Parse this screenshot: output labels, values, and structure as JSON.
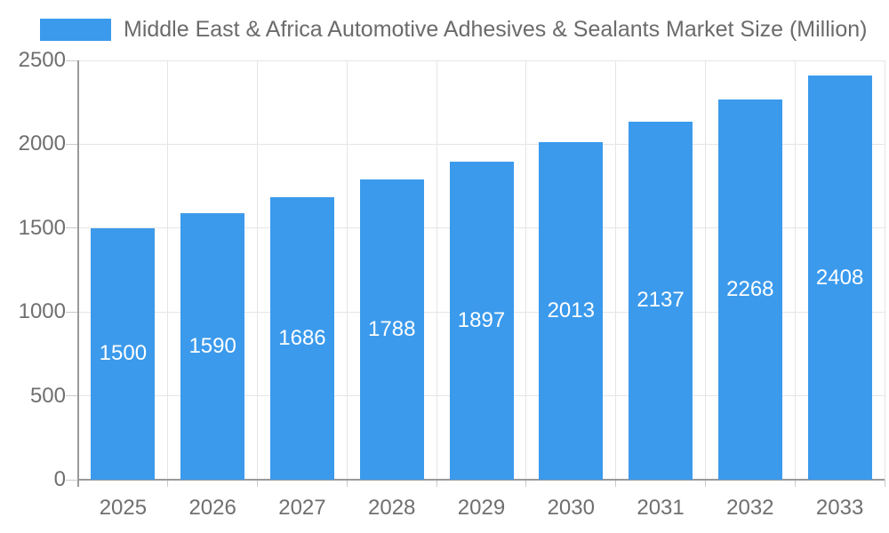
{
  "chart": {
    "background": "#ffffff",
    "colors": {
      "bar": "#3b9aec",
      "grid": "#e5e5e5",
      "axis": "#9a9a9a",
      "tick": "#c9c9c9",
      "label_text": "#6f6f6f",
      "title_text": "#6b6b6b",
      "value_text": "#ffffff"
    }
  },
  "chart_data": {
    "type": "bar",
    "title": "Middle East & Africa Automotive Adhesives & Sealants Market Size (Million)",
    "categories": [
      "2025",
      "2026",
      "2027",
      "2028",
      "2029",
      "2030",
      "2031",
      "2032",
      "2033"
    ],
    "values": [
      1500,
      1590,
      1686,
      1788,
      1897,
      2013,
      2137,
      2268,
      2408
    ],
    "series": [
      {
        "name": "Middle East & Africa Automotive Adhesives & Sealants Market Size (Million)",
        "values": [
          1500,
          1590,
          1686,
          1788,
          1897,
          2013,
          2137,
          2268,
          2408
        ]
      }
    ],
    "xlabel": "",
    "ylabel": "",
    "ylim": [
      0,
      2500
    ],
    "yticks": [
      0,
      500,
      1000,
      1500,
      2000,
      2500
    ],
    "grid": true,
    "legend_position": "top-left",
    "value_labels": "inside-middle"
  }
}
